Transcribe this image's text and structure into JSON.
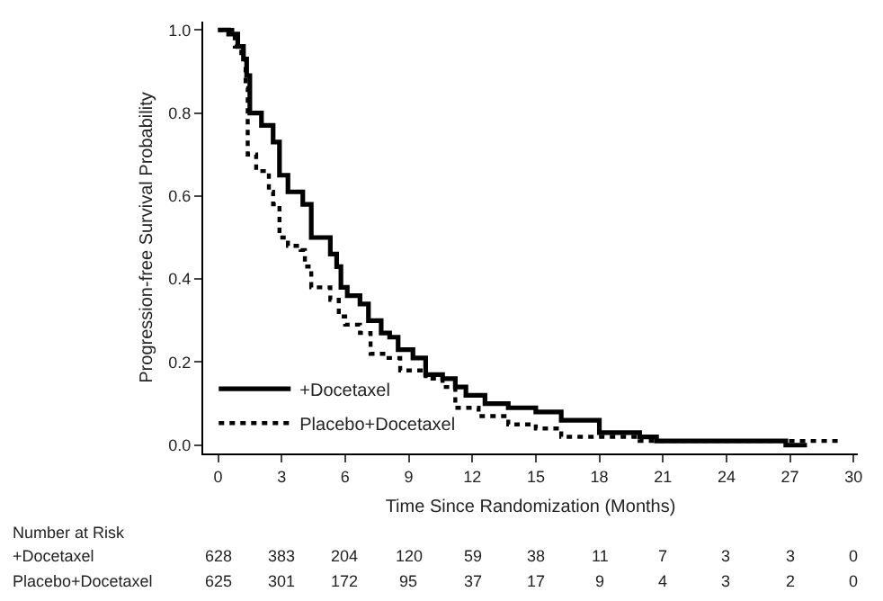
{
  "chart_data": {
    "type": "step",
    "xlabel": "Time Since Randomization (Months)",
    "ylabel": "Progression-free Survival Probability",
    "xlim": [
      -0.7,
      30.2
    ],
    "xticks": [
      0,
      3,
      6,
      9,
      12,
      15,
      18,
      21,
      24,
      27,
      30
    ],
    "ylim": [
      -0.02,
      1.02
    ],
    "yticks": [
      {
        "value": 0,
        "label": "0.0"
      },
      0.2,
      0.4,
      0.6,
      0.8,
      {
        "value": 1,
        "label": "1.0"
      }
    ],
    "legend": "bottom left",
    "marker": "none",
    "series": [
      {
        "name": "+Docetaxel",
        "color": "#000000",
        "line_style": "solid",
        "x": [
          0,
          0.5,
          0.93,
          1.2,
          1.35,
          1.5,
          2.05,
          2.6,
          2.9,
          3.3,
          4.0,
          4.4,
          5.3,
          5.6,
          5.8,
          6.1,
          6.7,
          7.1,
          7.7,
          8.1,
          8.5,
          9.2,
          9.8,
          10.6,
          11.2,
          11.7,
          12.6,
          13.7,
          15.0,
          16.2,
          18.0,
          19.9,
          20.7,
          22.4,
          26.8,
          27.8
        ],
        "values": [
          1.0,
          0.99,
          0.96,
          0.93,
          0.89,
          0.8,
          0.77,
          0.73,
          0.65,
          0.61,
          0.58,
          0.5,
          0.46,
          0.43,
          0.38,
          0.36,
          0.34,
          0.3,
          0.27,
          0.26,
          0.23,
          0.21,
          0.17,
          0.16,
          0.14,
          0.12,
          0.1,
          0.09,
          0.08,
          0.06,
          0.03,
          0.02,
          0.01,
          0.01,
          0.0,
          0.0
        ]
      },
      {
        "name": "Placebo+Docetaxel",
        "color": "#000000",
        "line_style": "dotted",
        "x": [
          0,
          0.79,
          1.1,
          1.3,
          1.4,
          1.8,
          2.4,
          2.6,
          2.9,
          3.3,
          3.9,
          4.1,
          4.4,
          5.3,
          5.7,
          6.0,
          6.7,
          7.2,
          7.9,
          8.6,
          9.8,
          10.6,
          11.2,
          12.3,
          13.7,
          15.0,
          16.2,
          18.0,
          19.9,
          29.4
        ],
        "values": [
          1.0,
          0.96,
          0.93,
          0.86,
          0.7,
          0.66,
          0.61,
          0.58,
          0.5,
          0.48,
          0.47,
          0.43,
          0.38,
          0.35,
          0.31,
          0.29,
          0.27,
          0.22,
          0.21,
          0.18,
          0.16,
          0.14,
          0.09,
          0.07,
          0.05,
          0.04,
          0.02,
          0.02,
          0.01,
          0.01
        ]
      }
    ],
    "annotations": [
      "Number at Risk",
      "+Docetaxel",
      "628",
      "383",
      "204",
      "120",
      "59",
      "38",
      "11",
      "7",
      "3",
      "3",
      "0",
      "Placebo+Docetaxel",
      "625",
      "301",
      "172",
      "95",
      "37",
      "17",
      "9",
      "4",
      "3",
      "2",
      "0"
    ]
  }
}
